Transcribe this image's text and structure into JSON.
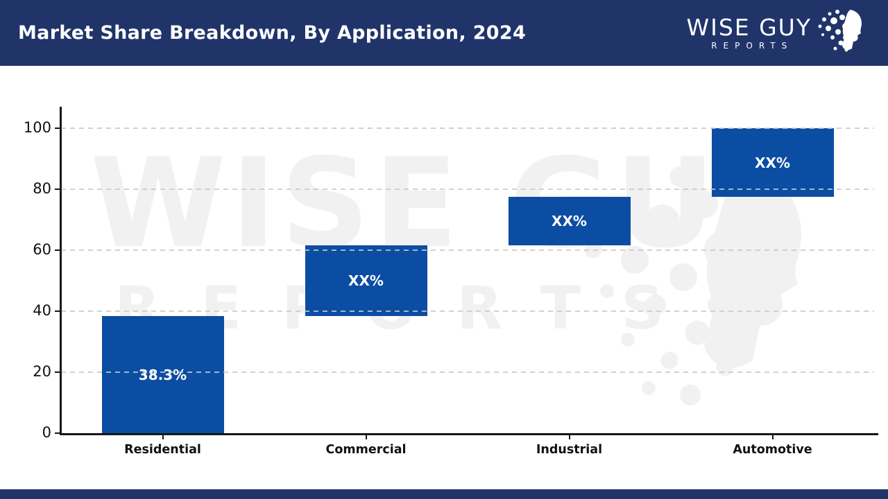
{
  "header": {
    "title": "Market Share Breakdown, By Application, 2024",
    "brand": {
      "line1": "WISE GUY",
      "line2": "REPORTS"
    }
  },
  "watermark": {
    "line1": "WISE GUY",
    "line2": "REPORTS"
  },
  "colors": {
    "header_bg": "#20346a",
    "footer_bg": "#20346a",
    "bar": "#0b4da2",
    "bar_label": "#ffffff",
    "grid": "#c9c9c9",
    "axis": "#161616",
    "watermark": "#f1f1f2"
  },
  "chart_data": {
    "type": "bar",
    "subtype": "waterfall",
    "title": "Market Share Breakdown, By Application, 2024",
    "xlabel": "",
    "ylabel": "",
    "categories": [
      "Residential",
      "Commercial",
      "Industrial",
      "Automotive"
    ],
    "segments": [
      {
        "category": "Residential",
        "start": 0,
        "end": 38.3,
        "label": "38.3%"
      },
      {
        "category": "Commercial",
        "start": 38.3,
        "end": 61.5,
        "label": "XX%"
      },
      {
        "category": "Industrial",
        "start": 61.5,
        "end": 77.5,
        "label": "XX%"
      },
      {
        "category": "Automotive",
        "start": 77.5,
        "end": 100,
        "label": "XX%"
      }
    ],
    "yticks": [
      0,
      20,
      40,
      60,
      80,
      100
    ],
    "ylim": [
      0,
      107
    ],
    "grid": "horizontal-dashed, drawn above bars",
    "legend": "none",
    "bar_value_labels": "centered inside bars, white bold"
  }
}
